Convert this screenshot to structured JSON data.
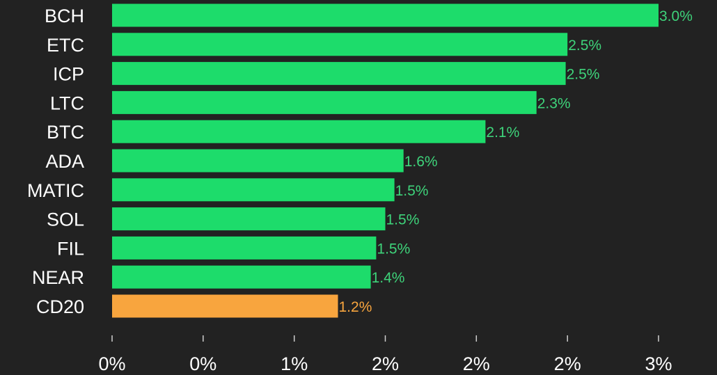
{
  "chart_data": {
    "type": "bar",
    "orientation": "horizontal",
    "title": "",
    "xlabel": "",
    "ylabel": "",
    "categories": [
      "BCH",
      "ETC",
      "ICP",
      "LTC",
      "BTC",
      "ADA",
      "MATIC",
      "SOL",
      "FIL",
      "NEAR",
      "CD20"
    ],
    "values": [
      3.0,
      2.5,
      2.49,
      2.33,
      2.05,
      1.6,
      1.55,
      1.5,
      1.45,
      1.42,
      1.24
    ],
    "value_labels": [
      "3.0%",
      "2.5%",
      "2.5%",
      "2.3%",
      "2.1%",
      "1.6%",
      "1.5%",
      "1.5%",
      "1.5%",
      "1.4%",
      "1.2%"
    ],
    "highlight_category": "CD20",
    "xlim": [
      0,
      3.0
    ],
    "x_ticks": [
      0,
      0.5,
      1.0,
      1.5,
      2.0,
      2.5,
      3.0
    ],
    "x_tick_labels": [
      "0%",
      "0%",
      "1%",
      "2%",
      "2%",
      "2%",
      "3%"
    ],
    "grid": false,
    "legend": "none",
    "colors": {
      "background": "#222222",
      "bar": "#1ddc6b",
      "highlight_bar": "#f8a53e",
      "value_label": "#3ed37a",
      "highlight_value_label": "#f8a53e",
      "text": "#ffffff"
    }
  }
}
